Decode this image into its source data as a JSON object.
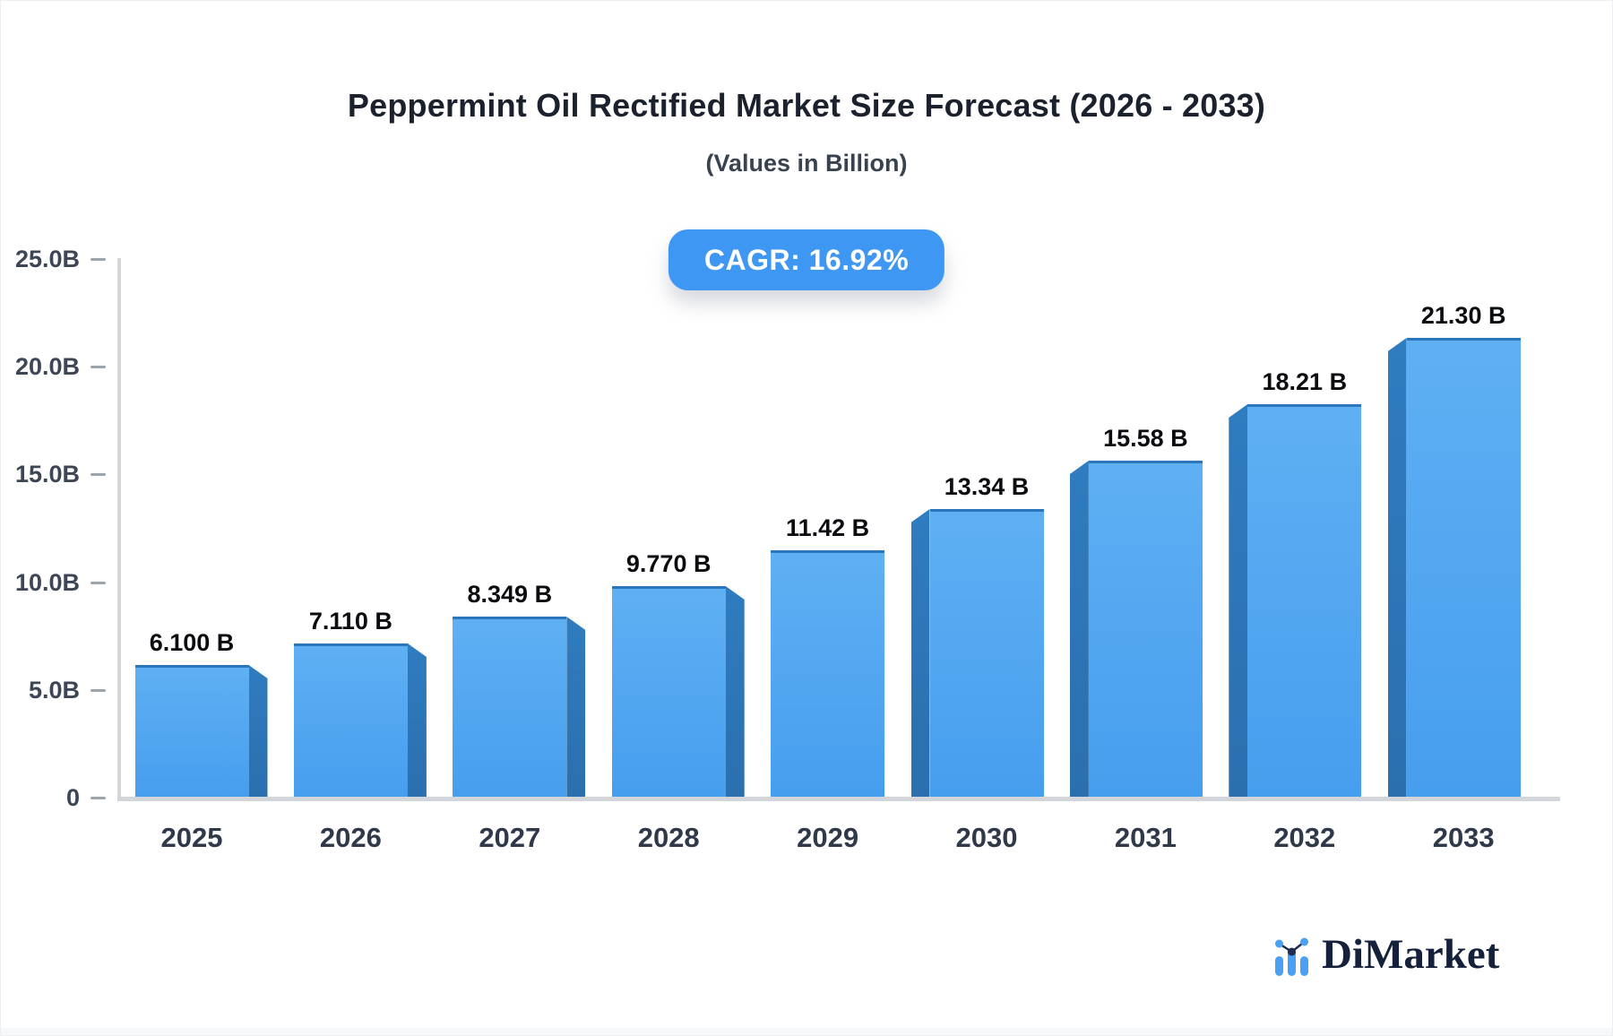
{
  "header": {
    "title": "Peppermint Oil Rectified Market Size Forecast (2026 - 2033)",
    "subtitle": "(Values in Billion)",
    "cagr_badge": "CAGR: 16.92%"
  },
  "colors": {
    "badge": "#3e97f2",
    "bar_face_top": "#5fb0f3",
    "bar_face_bottom": "#469eee",
    "bar_side": "#2d74b5",
    "axis": "#d2d5da",
    "title_text": "#1b222e",
    "logo_blue": "#4aa0f2",
    "logo_navy": "#15213b"
  },
  "chart_data": {
    "type": "bar",
    "title": "Peppermint Oil Rectified Market Size Forecast (2026 - 2033)",
    "subtitle": "(Values in Billion)",
    "annotation": "CAGR: 16.92%",
    "categories": [
      "2025",
      "2026",
      "2027",
      "2028",
      "2029",
      "2030",
      "2031",
      "2032",
      "2033"
    ],
    "values": [
      6.1,
      7.11,
      8.349,
      9.77,
      11.42,
      13.34,
      15.58,
      18.21,
      21.3
    ],
    "value_labels": [
      "6.100 B",
      "7.110 B",
      "8.349 B",
      "9.770 B",
      "11.42 B",
      "13.34 B",
      "15.58 B",
      "18.21 B",
      "21.30 B"
    ],
    "xlabel": "",
    "ylabel": "",
    "ylim": [
      0,
      25
    ],
    "grid": false,
    "legend": false,
    "yticks": [
      {
        "value": 25,
        "label": "25.0B"
      },
      {
        "value": 20,
        "label": "20.0B"
      },
      {
        "value": 15,
        "label": "15.0B"
      },
      {
        "value": 10,
        "label": "10.0B"
      },
      {
        "value": 5,
        "label": "5.0B"
      },
      {
        "value": 0,
        "label": "0"
      }
    ]
  },
  "logo": {
    "text": "DiMarket"
  }
}
